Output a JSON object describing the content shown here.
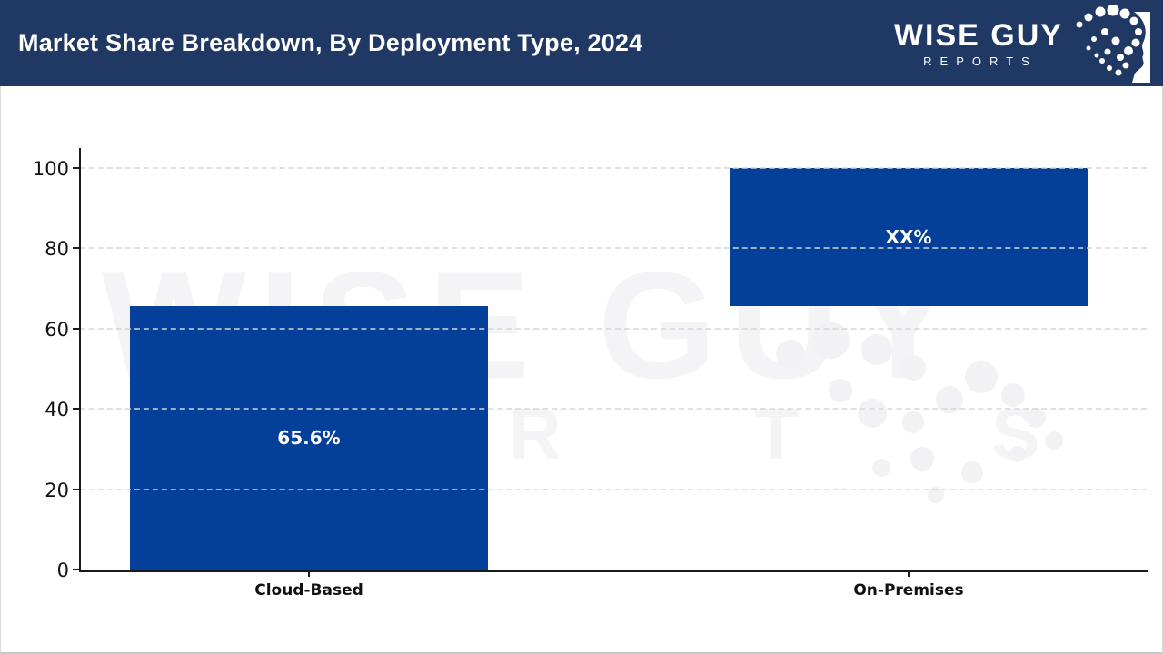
{
  "header": {
    "title": "Market Share Breakdown, By Deployment Type, 2024",
    "bg_color": "#203864",
    "logo": {
      "line1": "WISE GUY",
      "line2": "REPORTS"
    }
  },
  "watermark": {
    "line1": "WISE GUY",
    "line2": "R T S"
  },
  "chart_data": {
    "type": "bar",
    "style": "waterfall (second bar floats from end of first to 100)",
    "title": "Market Share Breakdown, By Deployment Type, 2024",
    "unit": "%",
    "categories": [
      "Cloud-Based",
      "On-Premises"
    ],
    "bars": [
      {
        "category": "Cloud-Based",
        "start": 0,
        "end": 65.6,
        "label": "65.6%"
      },
      {
        "category": "On-Premises",
        "start": 65.6,
        "end": 100,
        "label": "XX%"
      }
    ],
    "yticks": [
      0,
      20,
      40,
      60,
      80,
      100
    ],
    "ylim": [
      0,
      105
    ],
    "grid": "horizontal dashed",
    "bar_color": "#04409a",
    "bar_label_color": "#ffffff",
    "axis_color": "#1a1a1a",
    "gridline_color": "#d6d6d6"
  }
}
